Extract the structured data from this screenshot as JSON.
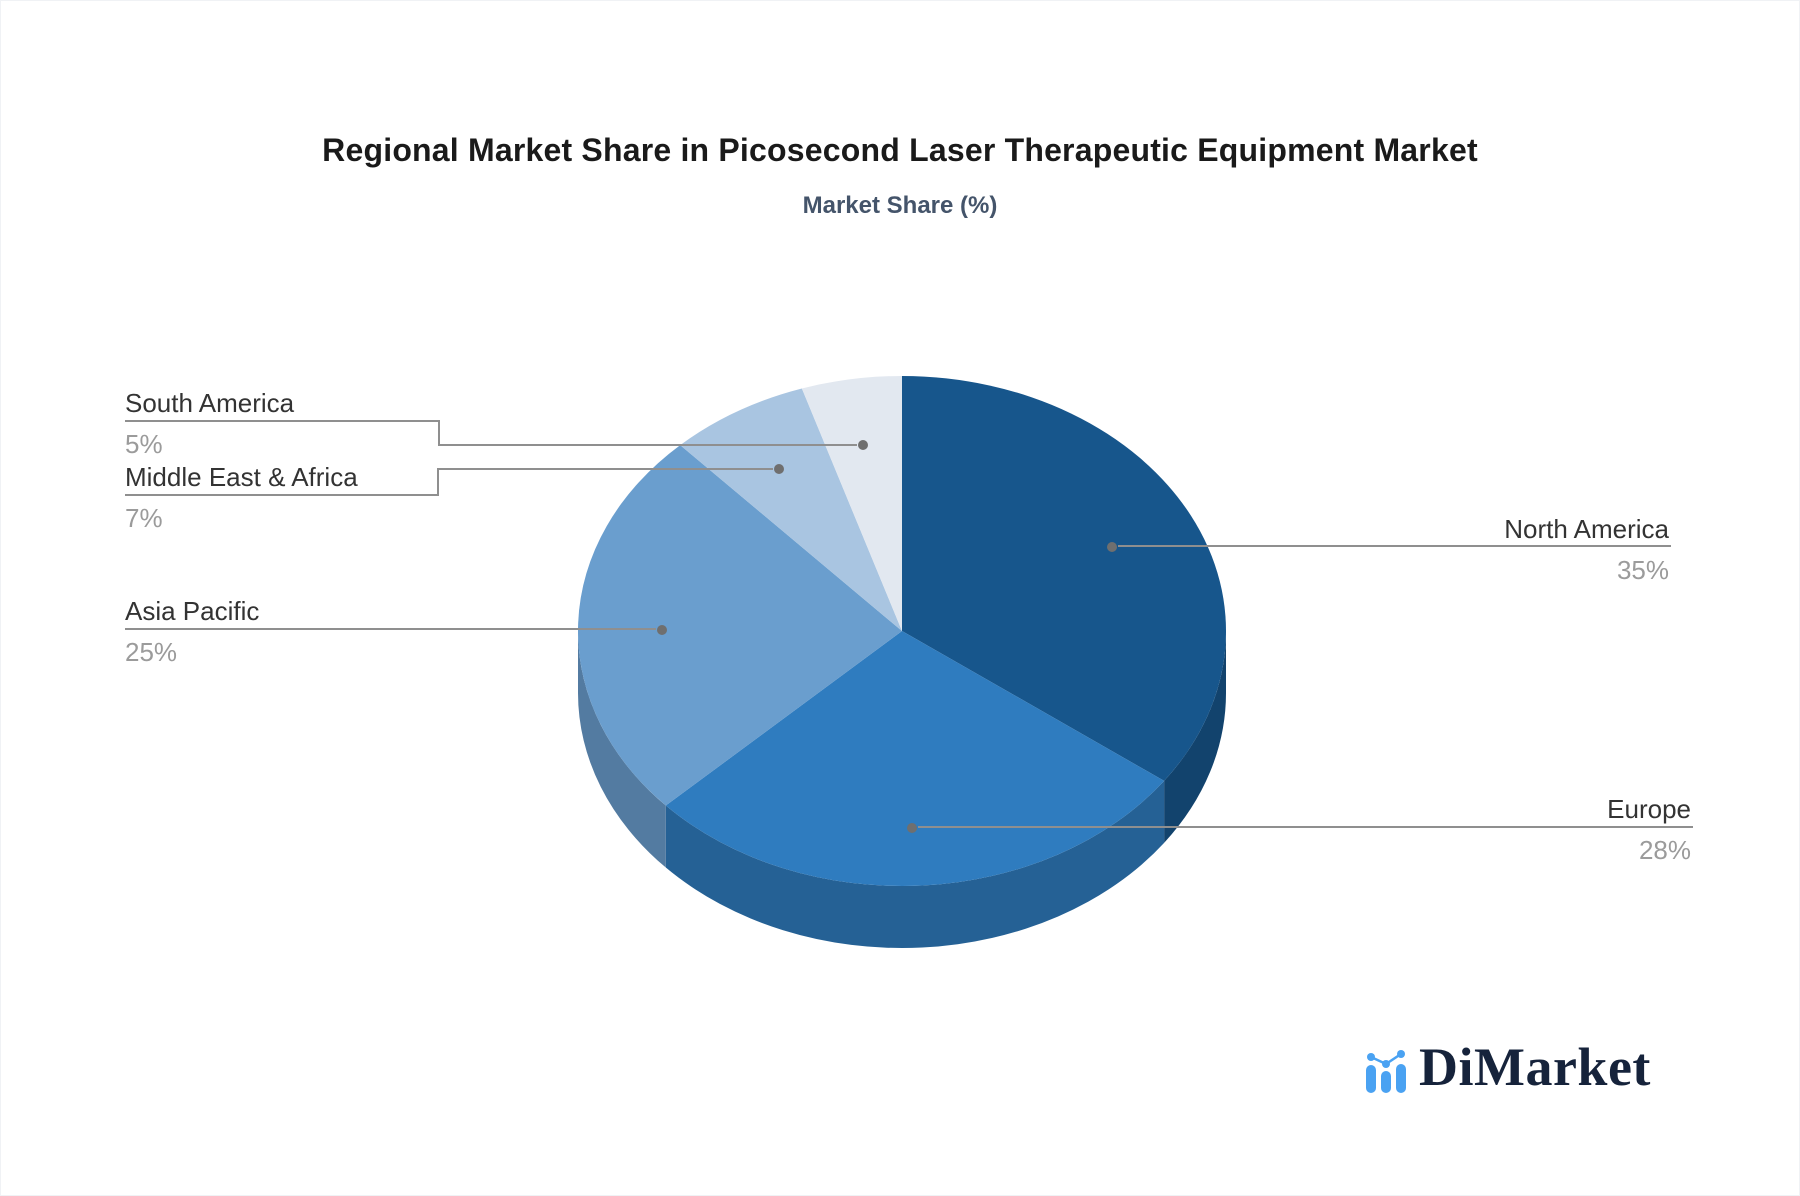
{
  "chart_data": {
    "type": "pie",
    "title": "Regional Market Share in Picosecond Laser Therapeutic Equipment Market",
    "subtitle": "Market Share (%)",
    "categories": [
      "North America",
      "Europe",
      "Asia Pacific",
      "Middle East & Africa",
      "South America"
    ],
    "values": [
      35,
      28,
      25,
      7,
      5
    ],
    "display_labels": [
      "35%",
      "28%",
      "25%",
      "7%",
      "5%"
    ],
    "unit": "%",
    "colors": [
      "#17568C",
      "#2F7CBF",
      "#6A9ECE",
      "#A9C5E1",
      "#E2E8F0"
    ],
    "style": "3d-pie-with-depth-rim",
    "start_angle_deg": 0,
    "direction": "clockwise",
    "label_layout": "leader-line callouts, names dark with percentage in gray below an underline",
    "legend_position": "none"
  },
  "colors": {
    "background": "#FFFFFF",
    "title": "#1A1A1A",
    "subtitle": "#44546A",
    "label_name": "#333333",
    "label_value": "#9B9B9B",
    "leader_line": "#8F8F8F",
    "leader_dot": "#6F6F6F",
    "logo_icon": "#4AA2F2",
    "logo_text": "#16233B"
  },
  "logo": {
    "text": "DiMarket",
    "icon": "bar-chart-with-trend-dots-logo-icon"
  }
}
